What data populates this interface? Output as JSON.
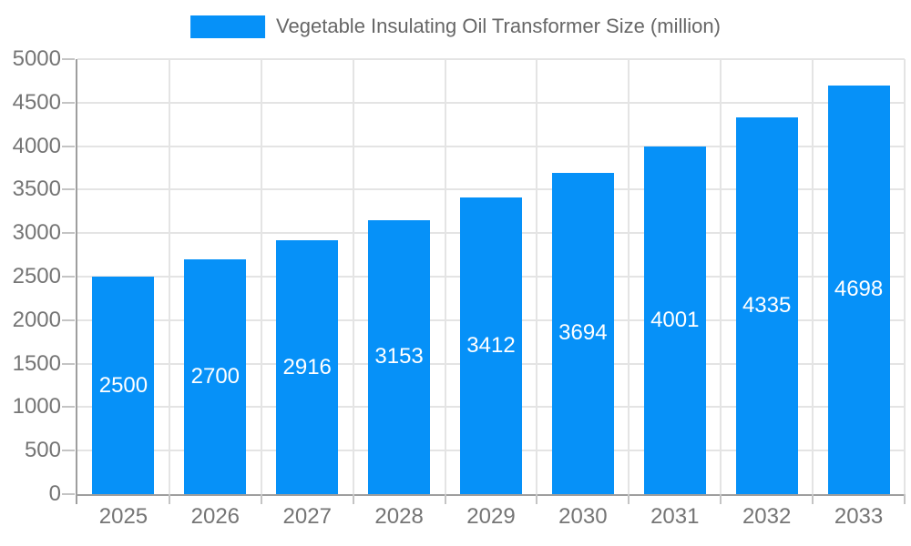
{
  "chart_data": {
    "type": "bar",
    "title": "Vegetable Insulating Oil Transformer Size (million)",
    "legend": [
      "Vegetable Insulating Oil Transformer Size (million)"
    ],
    "legend_position": "top-center",
    "categories": [
      "2025",
      "2026",
      "2027",
      "2028",
      "2029",
      "2030",
      "2031",
      "2032",
      "2033"
    ],
    "values": [
      2500,
      2700,
      2916,
      3153,
      3412,
      3694,
      4001,
      4335,
      4698
    ],
    "xlabel": "",
    "ylabel": "",
    "ylim": [
      0,
      5000
    ],
    "ytick_step": 500,
    "yticks": [
      0,
      500,
      1000,
      1500,
      2000,
      2500,
      3000,
      3500,
      4000,
      4500,
      5000
    ],
    "grid": true,
    "colors": {
      "bar": "#0691f8",
      "bar_label": "#ffffff",
      "axis_line": "#9e9e9e",
      "grid_line": "#e4e4e4",
      "tick": "#c4c4c4",
      "axis_text": "#757575",
      "title_text": "#666666",
      "background": "#ffffff"
    }
  }
}
